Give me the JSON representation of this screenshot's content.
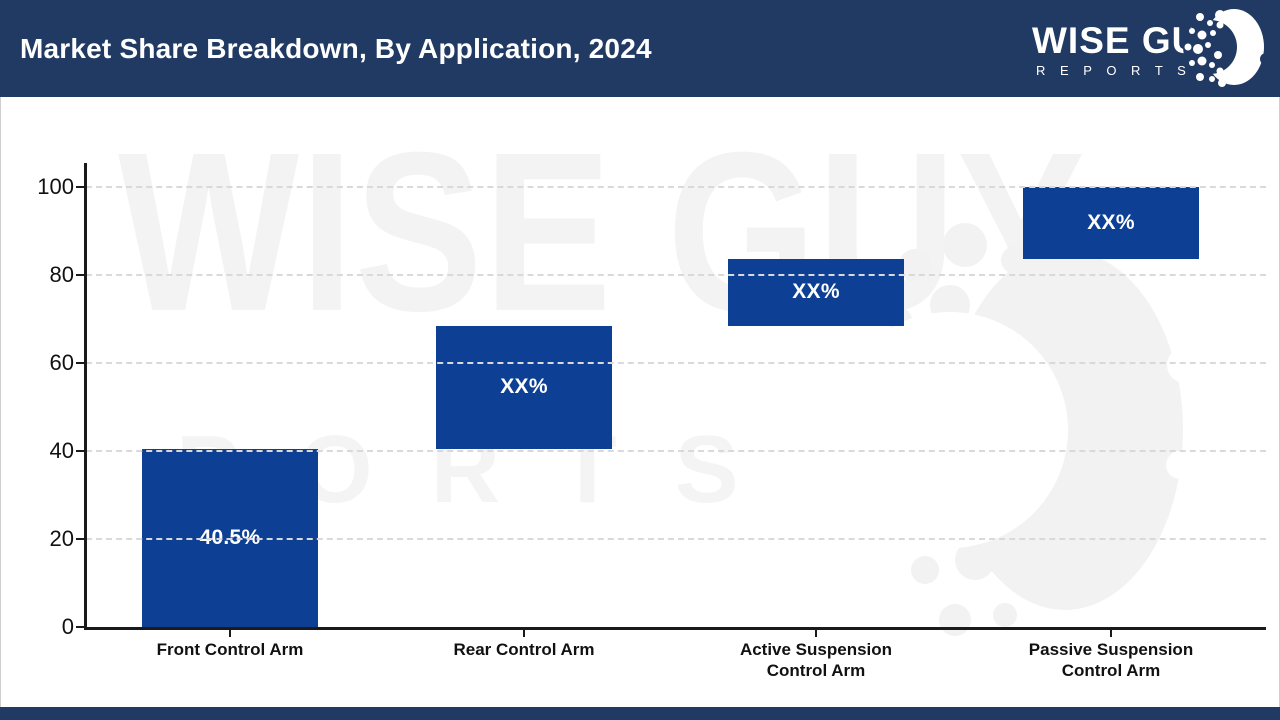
{
  "header": {
    "title": "Market Share Breakdown, By Application, 2024",
    "logo": {
      "line1": "WISE GUY",
      "line2": "R E P O R T S"
    }
  },
  "watermark": {
    "line1": "WISE GUY",
    "line2": "PORTS"
  },
  "footer": {},
  "chart_data": {
    "type": "bar",
    "subtype": "waterfall",
    "title": "Market Share Breakdown, By Application, 2024",
    "xlabel": "",
    "ylabel": "",
    "ylim": [
      0,
      105
    ],
    "yticks": [
      0,
      20,
      40,
      60,
      80,
      100
    ],
    "grid": "horizontal dashed",
    "legend": "none",
    "bar_color": "#0d4094",
    "label_color": "#ffffff",
    "categories": [
      [
        "Front Control Arm"
      ],
      [
        "Rear Control Arm"
      ],
      [
        "Active Suspension",
        "Control Arm"
      ],
      [
        "Passive Suspension",
        "Control Arm"
      ]
    ],
    "segments": [
      {
        "category": "Front Control Arm",
        "start": 0,
        "end": 40.5,
        "value": 40.5,
        "label": "40.5%"
      },
      {
        "category": "Rear Control Arm",
        "start": 40.5,
        "end": 68.5,
        "value": 28.0,
        "label": "XX%"
      },
      {
        "category": "Active Suspension Control Arm",
        "start": 68.5,
        "end": 83.6,
        "value": 15.1,
        "label": "XX%"
      },
      {
        "category": "Passive Suspension Control Arm",
        "start": 83.6,
        "end": 100,
        "value": 16.4,
        "label": "XX%"
      }
    ]
  },
  "colors": {
    "header_bg": "#213a63",
    "bar_blue": "#0d4094",
    "gridline": "#d9d9d9",
    "axis": "#1a1a1a",
    "watermark": "#f3f3f3"
  }
}
